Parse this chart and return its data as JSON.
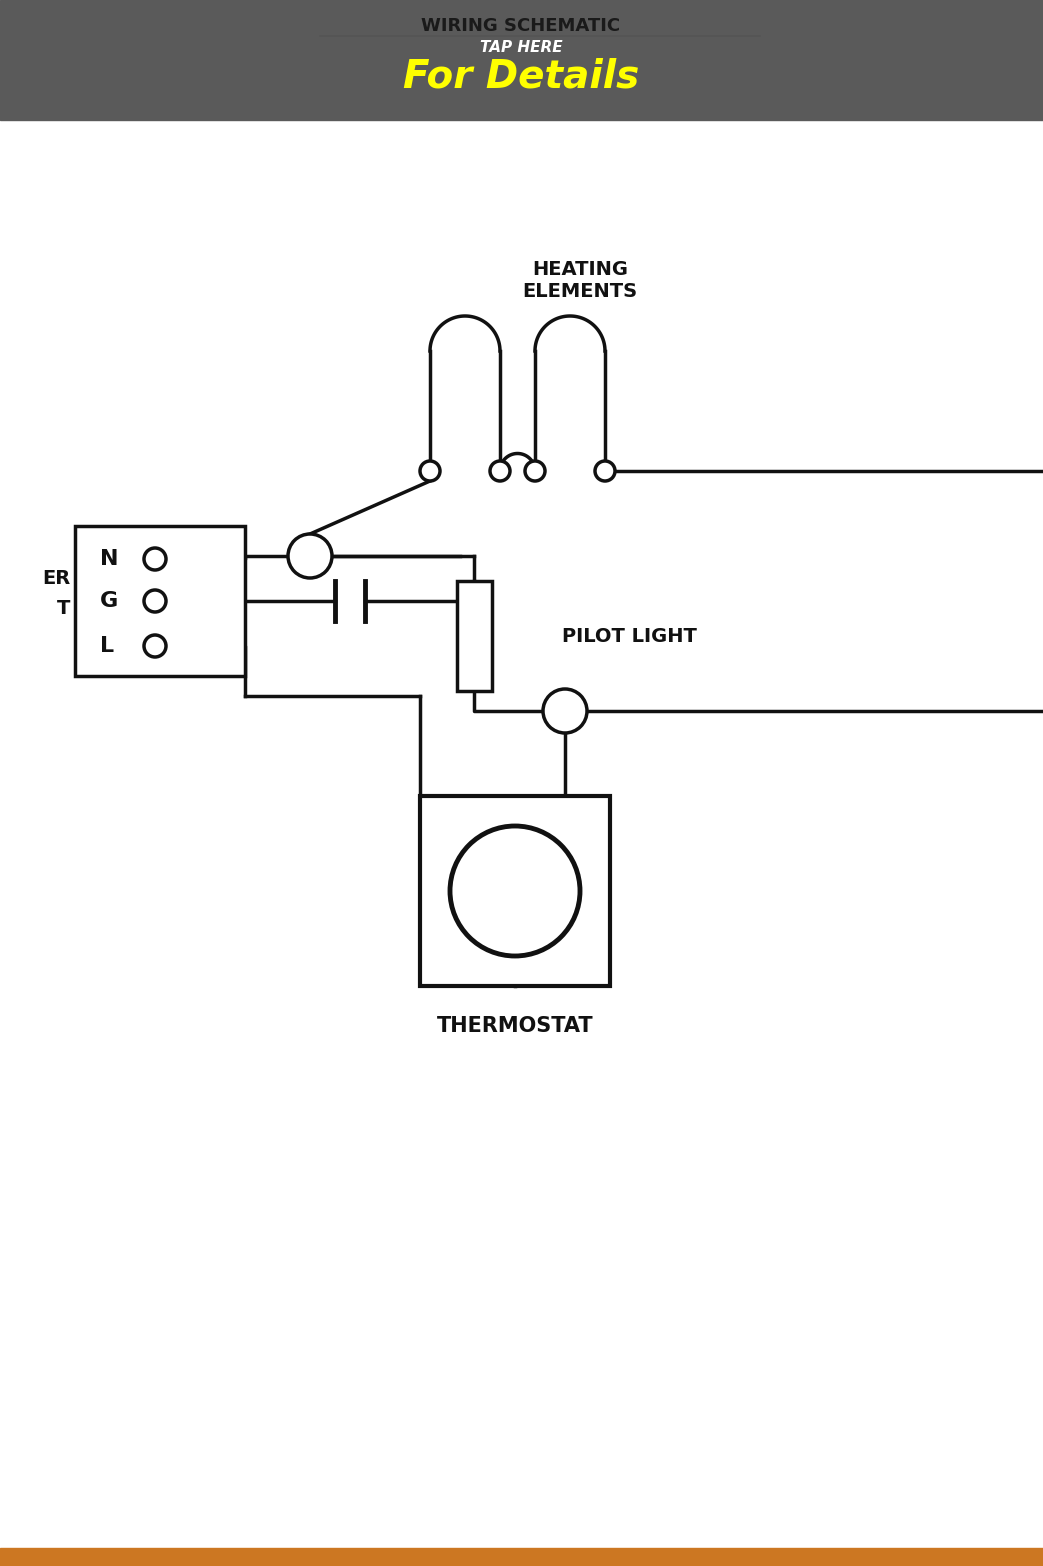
{
  "bg_color": "#ffffff",
  "header_bg": "#5a5a5a",
  "footer_bg": "#cc7722",
  "title1": "WIRING SCHEMATIC",
  "title2": "TAP HERE",
  "title3": "For Details",
  "thermostat_label": "THERMOSTAT",
  "heating_label": "HEATING\nELEMENTS",
  "pilot_label": "PILOT LIGHT",
  "line_color": "#111111",
  "line_width": 2.5
}
